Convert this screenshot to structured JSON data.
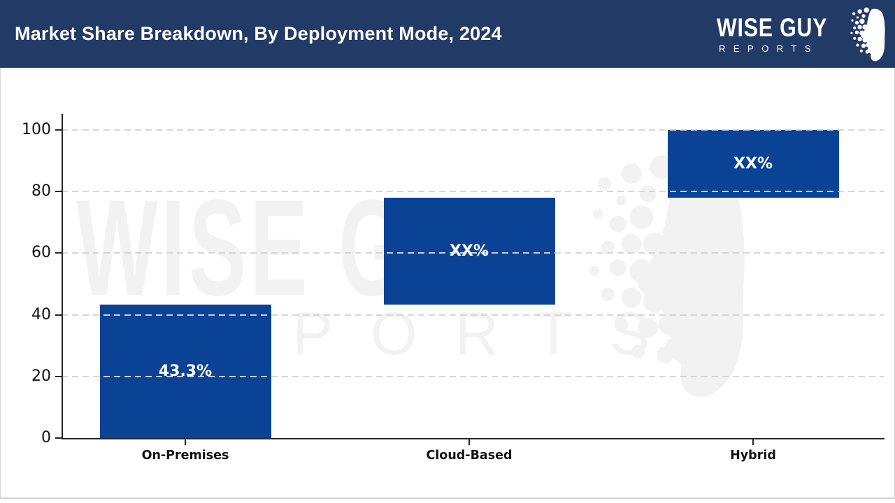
{
  "header": {
    "title": "Market Share Breakdown, By Deployment Mode, 2024",
    "brand": {
      "line1": "WISE GUY",
      "line2": "REPORTS"
    }
  },
  "watermark": {
    "line1": "WISE GUY",
    "line2": "REPORTS"
  },
  "colors": {
    "header_bg": "#213a66",
    "bar": "#0a4396",
    "axis": "#262626",
    "gridline": "#d5d5d5",
    "value_label": "#ffffff",
    "watermark": "#f2f2f2"
  },
  "chart_data": {
    "type": "bar",
    "subtype": "floating-segment-breakdown",
    "title": "Market Share Breakdown, By Deployment Mode, 2024",
    "categories": [
      "On-Premises",
      "Cloud-Based",
      "Hybrid"
    ],
    "bars": [
      {
        "category": "On-Premises",
        "start": 0,
        "end": 43.3,
        "label": "43.3%"
      },
      {
        "category": "Cloud-Based",
        "start": 43.3,
        "end": 78,
        "label": "XX%"
      },
      {
        "category": "Hybrid",
        "start": 78,
        "end": 100,
        "label": "XX%"
      }
    ],
    "xlabel": "",
    "ylabel": "",
    "ylim": [
      0,
      100
    ],
    "yticks": [
      0,
      20,
      40,
      60,
      80,
      100
    ],
    "grid": "horizontal-dashed",
    "legend": "none",
    "bar_color": "#0a4396",
    "value_label_color": "#ffffff"
  }
}
